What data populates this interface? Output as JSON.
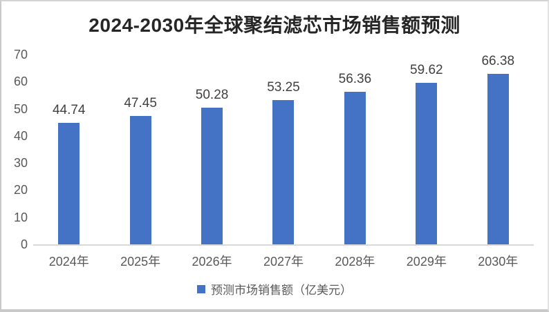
{
  "chart_data": {
    "type": "bar",
    "title": "2024-2030年全球聚结滤芯市场销售额预测",
    "categories": [
      "2024年",
      "2025年",
      "2026年",
      "2027年",
      "2028年",
      "2029年",
      "2030年"
    ],
    "values": [
      44.74,
      47.45,
      50.28,
      53.25,
      56.36,
      59.62,
      66.38
    ],
    "value_labels": [
      "44.74",
      "47.45",
      "50.28",
      "53.25",
      "56.36",
      "59.62",
      "66.38"
    ],
    "legend": "预测市场销售额（亿美元）",
    "legend_position": "bottom",
    "bar_color": "#4472C4",
    "ylim": [
      0,
      70
    ],
    "yticks": [
      0,
      10,
      20,
      30,
      40,
      50,
      60,
      70
    ],
    "grid": false,
    "xlabel": "",
    "ylabel": "",
    "colors": {
      "title_text": "#262626",
      "tick_text": "#595959",
      "data_label_text": "#404040",
      "axis_line": "#d9d9d9"
    }
  }
}
